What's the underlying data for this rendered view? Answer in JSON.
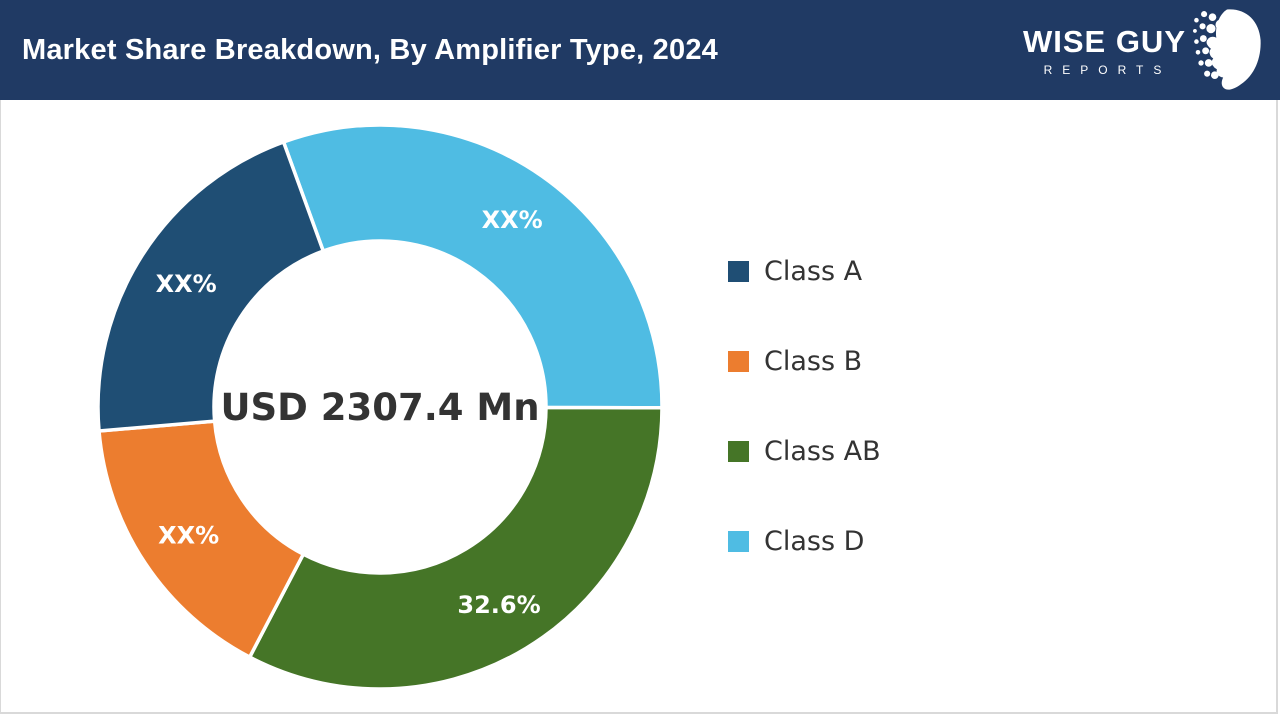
{
  "header": {
    "title": "Market Share Breakdown, By Amplifier Type, 2024",
    "bg_color": "#203A64",
    "logo": {
      "line1": "WISE GUY",
      "line2": "REPORTS"
    }
  },
  "watermark": {
    "line1": "WISE GUY",
    "line2": "REPORTS"
  },
  "chart_data": {
    "type": "pie",
    "subtype": "donut",
    "title": "Market Share Breakdown, By Amplifier Type, 2024",
    "center_label": "USD 2307.4 Mn",
    "legend_position": "right",
    "start_angle_deg": 110,
    "direction": "counterclockwise",
    "series": [
      {
        "name": "Class A",
        "value_pct": 20.8,
        "display_label": "XX%",
        "color": "#1F4E74"
      },
      {
        "name": "Class B",
        "value_pct": 16.0,
        "display_label": "XX%",
        "color": "#EC7D2F"
      },
      {
        "name": "Class AB",
        "value_pct": 32.6,
        "display_label": "32.6%",
        "color": "#457527"
      },
      {
        "name": "Class D",
        "value_pct": 30.6,
        "display_label": "XX%",
        "color": "#4FBCE3"
      }
    ]
  }
}
